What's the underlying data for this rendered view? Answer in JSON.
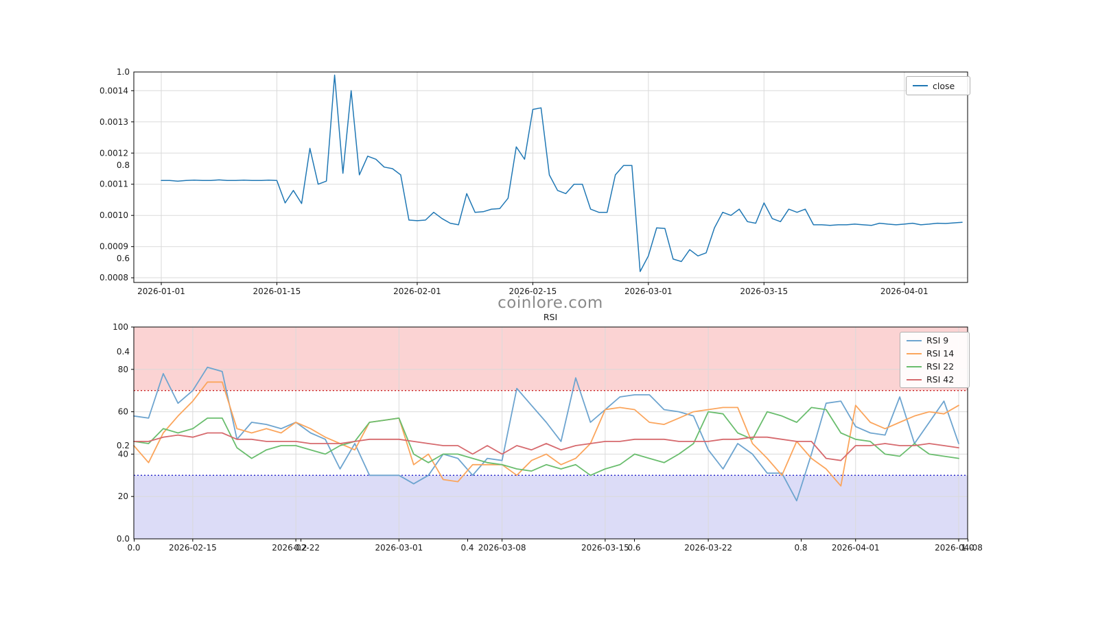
{
  "watermark": "coinlore.com",
  "rsi_title": "RSI",
  "overlay_axis": {
    "y_tick_labels": [
      "1.0",
      "0.8",
      "0.6",
      "0.4",
      "0.2",
      "0.0"
    ],
    "x_tick_labels": [
      "0.0",
      "0.2",
      "0.4",
      "0.6",
      "0.8",
      "1.0"
    ]
  },
  "chart_data": [
    {
      "type": "line",
      "name": "price",
      "title": "",
      "xlabel": "",
      "ylabel": "",
      "grid": true,
      "legend_position": "upper right",
      "x_range": [
        "2026-01-01",
        "2026-04-08"
      ],
      "x_freq": "daily",
      "x_tick_indices": [
        0,
        14,
        31,
        45,
        59,
        73,
        90
      ],
      "x_tick_labels": [
        "2026-01-01",
        "2026-01-15",
        "2026-02-01",
        "2026-02-15",
        "2026-03-01",
        "2026-03-15",
        "2026-04-01"
      ],
      "ylim": [
        0.000785,
        0.00146
      ],
      "y_tick_values": [
        0.0008,
        0.0009,
        0.001,
        0.0011,
        0.0012,
        0.0013,
        0.0014
      ],
      "y_tick_labels": [
        "0.0008",
        "0.0009",
        "0.0010",
        "0.0011",
        "0.0012",
        "0.0013",
        "0.0014"
      ],
      "series": [
        {
          "name": "close",
          "color": "#1f77b4",
          "line_width": 1.5,
          "values": [
            0.001112,
            0.001112,
            0.00111,
            0.001112,
            0.001113,
            0.001112,
            0.001112,
            0.001114,
            0.001112,
            0.001112,
            0.001113,
            0.001112,
            0.001112,
            0.001113,
            0.001112,
            0.00104,
            0.00108,
            0.001038,
            0.001215,
            0.0011,
            0.00111,
            0.00145,
            0.001135,
            0.0014,
            0.00113,
            0.00119,
            0.00118,
            0.001155,
            0.00115,
            0.00113,
            0.000985,
            0.000983,
            0.000985,
            0.00101,
            0.00099,
            0.000975,
            0.00097,
            0.00107,
            0.00101,
            0.001012,
            0.00102,
            0.001022,
            0.001055,
            0.00122,
            0.00118,
            0.00134,
            0.001345,
            0.00113,
            0.00108,
            0.00107,
            0.0011,
            0.0011,
            0.00102,
            0.00101,
            0.00101,
            0.00113,
            0.00116,
            0.00116,
            0.00082,
            0.00087,
            0.00096,
            0.000958,
            0.00086,
            0.000852,
            0.00089,
            0.00087,
            0.00088,
            0.00096,
            0.00101,
            0.001,
            0.00102,
            0.00098,
            0.000975,
            0.00104,
            0.00099,
            0.00098,
            0.00102,
            0.00101,
            0.00102,
            0.00097,
            0.00097,
            0.000968,
            0.00097,
            0.00097,
            0.000972,
            0.00097,
            0.000968,
            0.000975,
            0.000972,
            0.00097,
            0.000972,
            0.000975,
            0.00097,
            0.000972,
            0.000975,
            0.000974,
            0.000976,
            0.000978
          ]
        }
      ]
    },
    {
      "type": "line",
      "name": "rsi",
      "title": "RSI",
      "xlabel": "",
      "ylabel": "",
      "grid": true,
      "legend_position": "upper right",
      "x_range": [
        "2026-02-11",
        "2026-04-08"
      ],
      "x_freq": "daily",
      "x_tick_indices": [
        4,
        11,
        18,
        25,
        32,
        39,
        49,
        56
      ],
      "x_tick_labels": [
        "2026-02-15",
        "2026-02-22",
        "2026-03-01",
        "2026-03-08",
        "2026-03-15",
        "2026-03-22",
        "2026-04-01",
        "2026-04-08"
      ],
      "ylim": [
        0,
        100
      ],
      "y_tick_values": [
        20,
        40,
        60,
        80,
        100
      ],
      "y_tick_labels": [
        "20",
        "40",
        "60",
        "80",
        "100"
      ],
      "bands": [
        {
          "from": 70,
          "to": 100,
          "color": "#fbd3d3",
          "meaning": "overbought"
        },
        {
          "from": 0,
          "to": 30,
          "color": "#dcdcf7",
          "meaning": "oversold"
        }
      ],
      "hlines": [
        {
          "y": 70,
          "color": "#c82020",
          "style": "dotted"
        },
        {
          "y": 30,
          "color": "#2020c8",
          "style": "dotted"
        }
      ],
      "series": [
        {
          "name": "RSI 9",
          "color": "#6da4cf",
          "line_width": 1.8,
          "values": [
            58,
            57,
            78,
            64,
            70,
            81,
            79,
            47,
            55,
            54,
            52,
            55,
            50,
            47,
            33,
            45,
            30,
            30,
            30,
            26,
            30,
            40,
            38,
            30,
            38,
            37,
            71,
            63,
            55,
            46,
            76,
            55,
            61,
            67,
            68,
            68,
            61,
            60,
            58,
            42,
            33,
            45,
            40,
            31,
            31,
            18,
            40,
            64,
            65,
            53,
            50,
            49,
            67,
            45,
            55,
            65,
            45
          ]
        },
        {
          "name": "RSI 14",
          "color": "#fba55c",
          "line_width": 1.8,
          "values": [
            44,
            36,
            50,
            58,
            65,
            74,
            74,
            52,
            50,
            52,
            50,
            55,
            52,
            48,
            45,
            42,
            55,
            56,
            57,
            35,
            40,
            28,
            27,
            35,
            35,
            35,
            30,
            37,
            40,
            35,
            38,
            45,
            61,
            62,
            61,
            55,
            54,
            57,
            60,
            61,
            62,
            62,
            45,
            38,
            30,
            46,
            38,
            33,
            25,
            63,
            55,
            52,
            55,
            58,
            60,
            59,
            63
          ]
        },
        {
          "name": "RSI 22",
          "color": "#69bd6d",
          "line_width": 1.8,
          "values": [
            46,
            45,
            52,
            50,
            52,
            57,
            57,
            43,
            38,
            42,
            44,
            44,
            42,
            40,
            44,
            46,
            55,
            56,
            57,
            40,
            36,
            40,
            40,
            38,
            36,
            35,
            33,
            32,
            35,
            33,
            35,
            30,
            33,
            35,
            40,
            38,
            36,
            40,
            45,
            60,
            59,
            50,
            47,
            60,
            58,
            55,
            62,
            61,
            50,
            47,
            46,
            40,
            39,
            45,
            40,
            39,
            38
          ]
        },
        {
          "name": "RSI 42",
          "color": "#d6696d",
          "line_width": 1.8,
          "values": [
            46,
            46,
            48,
            49,
            48,
            50,
            50,
            47,
            47,
            46,
            46,
            46,
            45,
            45,
            45,
            46,
            47,
            47,
            47,
            46,
            45,
            44,
            44,
            40,
            44,
            40,
            44,
            42,
            45,
            42,
            44,
            45,
            46,
            46,
            47,
            47,
            47,
            46,
            46,
            46,
            47,
            47,
            48,
            48,
            47,
            46,
            46,
            38,
            37,
            44,
            44,
            45,
            44,
            44,
            45,
            44,
            43
          ]
        }
      ]
    }
  ]
}
